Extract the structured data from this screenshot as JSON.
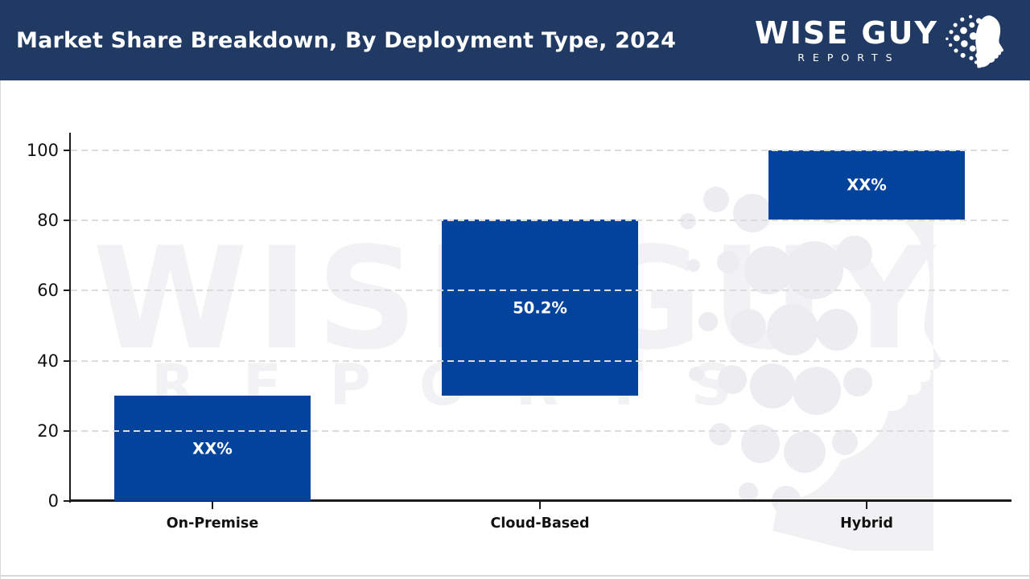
{
  "header": {
    "title": "Market Share Breakdown, By Deployment Type, 2024",
    "logo": {
      "line1": "WISE GUY",
      "line2": "REPORTS"
    }
  },
  "watermark": {
    "line1": "WISE GUY",
    "line2": "REPORTS"
  },
  "colors": {
    "header_navy": "#213a63",
    "bar_blue": "#04439c",
    "axis": "#1c1c1c",
    "gridline": "#dcdcdc",
    "watermark_gray": "#f2f2f4"
  },
  "chart_data": {
    "type": "bar",
    "subtype": "floating-waterfall",
    "title": "Market Share Breakdown, By Deployment Type, 2024",
    "xlabel": "",
    "ylabel": "",
    "categories": [
      "On-Premise",
      "Cloud-Based",
      "Hybrid"
    ],
    "series": [
      {
        "name": "Market share (%)",
        "segments": [
          {
            "category": "On-Premise",
            "start": 0,
            "end": 30,
            "value": 30,
            "label": "XX%"
          },
          {
            "category": "Cloud-Based",
            "start": 30,
            "end": 80.2,
            "value": 50.2,
            "label": "50.2%"
          },
          {
            "category": "Hybrid",
            "start": 80.2,
            "end": 100,
            "value": 19.8,
            "label": "XX%"
          }
        ]
      }
    ],
    "yticks": [
      0,
      20,
      40,
      60,
      80,
      100
    ],
    "ylim": [
      0,
      105
    ],
    "grid": "horizontal-dashed",
    "legend": "none",
    "bar_color": "#04439c",
    "bar_label_color": "#ffffff"
  }
}
